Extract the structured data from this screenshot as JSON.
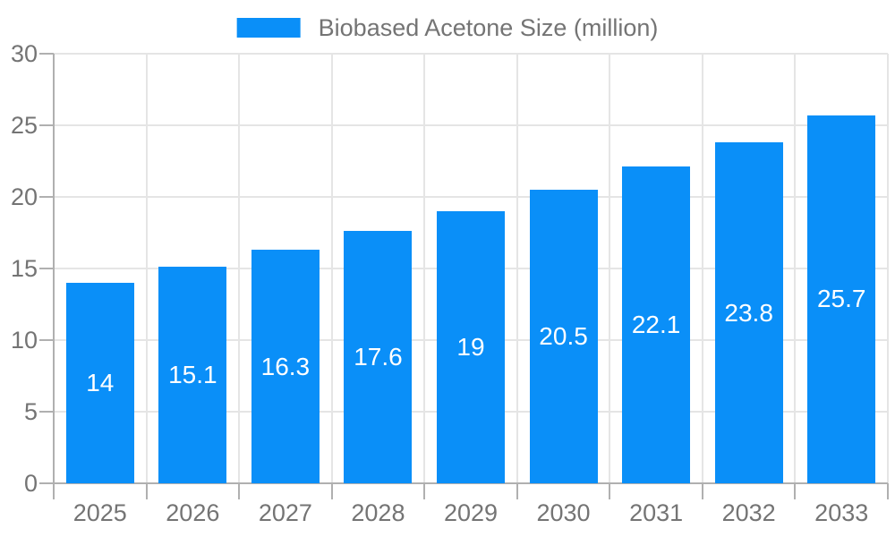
{
  "chart_data": {
    "type": "bar",
    "title": "",
    "legend_label": "Biobased Acetone Size (million)",
    "legend_position": "top-center",
    "categories": [
      "2025",
      "2026",
      "2027",
      "2028",
      "2029",
      "2030",
      "2031",
      "2032",
      "2033"
    ],
    "series": [
      {
        "name": "Biobased Acetone Size (million)",
        "values": [
          14,
          15.1,
          16.3,
          17.6,
          19,
          20.5,
          22.1,
          23.8,
          25.7
        ]
      }
    ],
    "value_labels": [
      "14",
      "15.1",
      "16.3",
      "17.6",
      "19",
      "20.5",
      "22.1",
      "23.8",
      "25.7"
    ],
    "xlabel": "",
    "ylabel": "",
    "ylim": [
      0,
      30
    ],
    "yticks": [
      0,
      5,
      10,
      15,
      20,
      25,
      30
    ],
    "ytick_labels": [
      "0",
      "5",
      "10",
      "15",
      "20",
      "25",
      "30"
    ],
    "grid": true,
    "colors": {
      "bar": "#0a8ff8",
      "grid": "#e5e5e5",
      "axis": "#b0b0b0",
      "tick_text": "#747474",
      "legend_text": "#747474",
      "value_text": "#ffffff",
      "background": "#ffffff"
    }
  }
}
